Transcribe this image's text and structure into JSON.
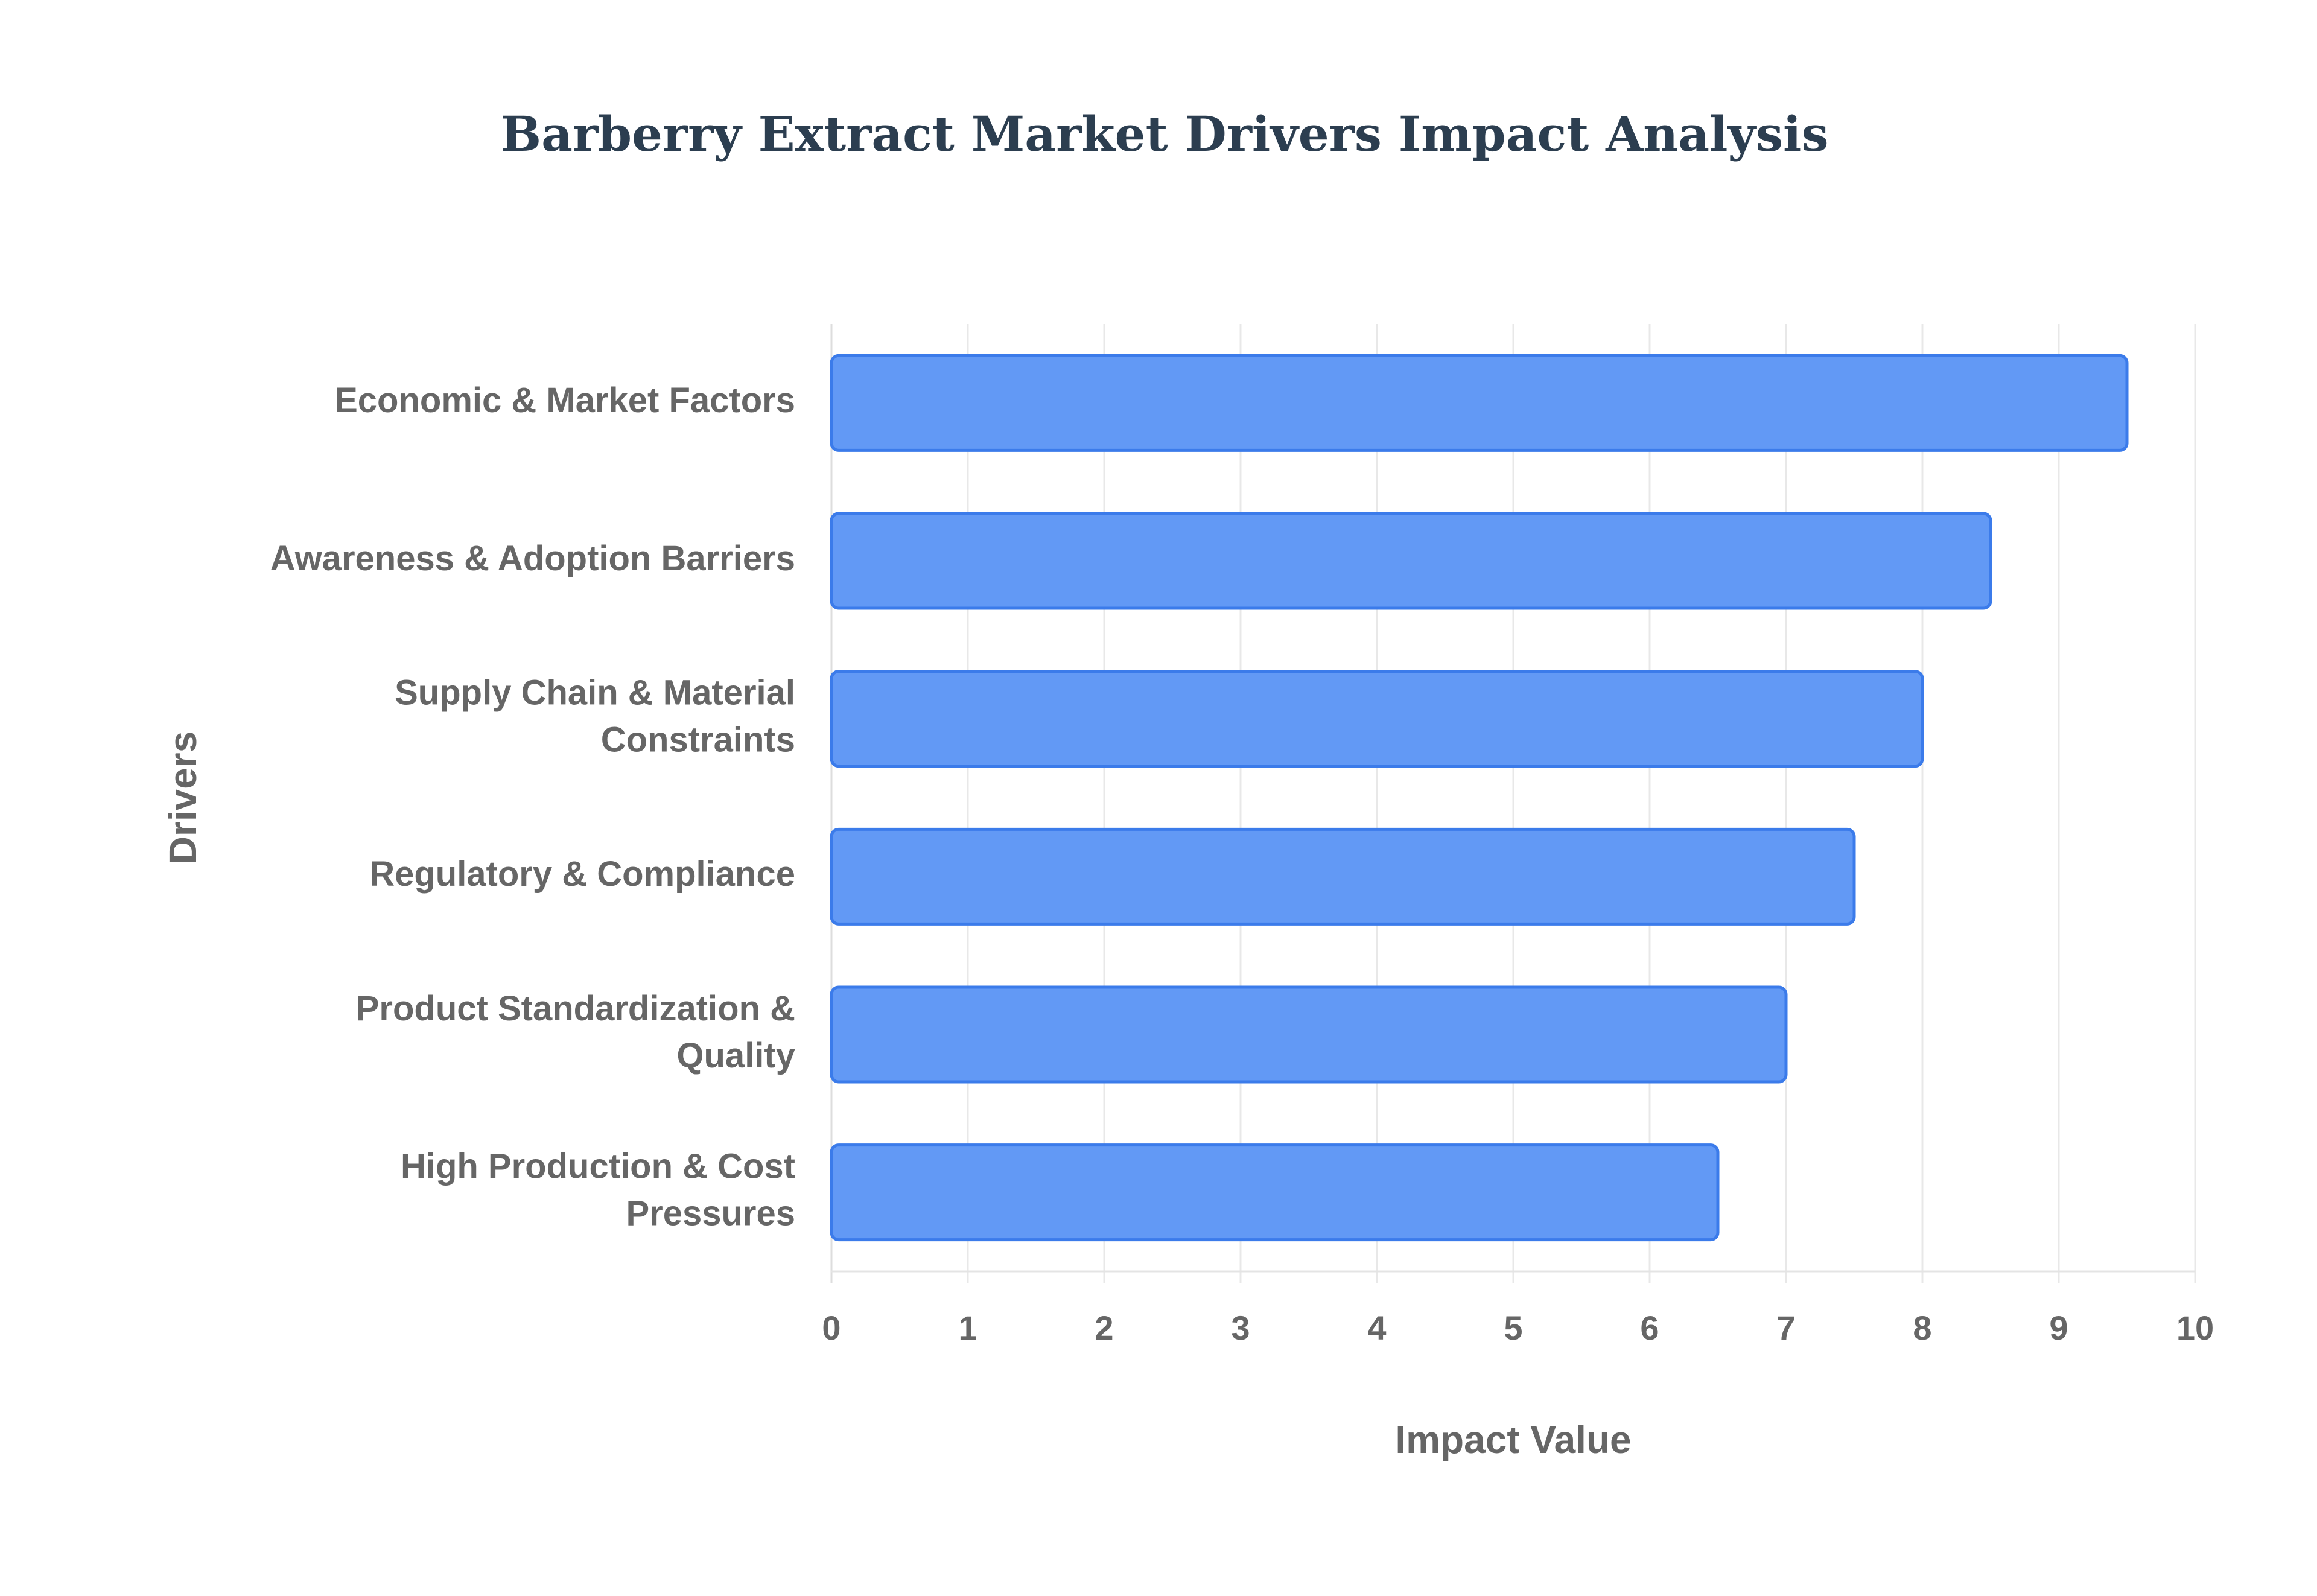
{
  "chart_data": {
    "type": "bar",
    "orientation": "horizontal",
    "title": "Barberry Extract Market Drivers Impact Analysis",
    "xlabel": "Impact Value",
    "ylabel": "Drivers",
    "xlim": [
      0,
      10
    ],
    "x_ticks": [
      "0",
      "1",
      "2",
      "3",
      "4",
      "5",
      "6",
      "7",
      "8",
      "9",
      "10"
    ],
    "grid": "vertical",
    "legend": "none",
    "bar_color": "#6299F5",
    "bar_border_color": "#3B7BEA",
    "categories": [
      [
        "Economic & Market Factors"
      ],
      [
        "Awareness & Adoption Barriers"
      ],
      [
        "Supply Chain & Material",
        "Constraints"
      ],
      [
        "Regulatory & Compliance"
      ],
      [
        "Product Standardization &",
        "Quality"
      ],
      [
        "High Production & Cost",
        "Pressures"
      ]
    ],
    "values": [
      9.5,
      8.5,
      8.0,
      7.5,
      7.0,
      6.5
    ]
  }
}
